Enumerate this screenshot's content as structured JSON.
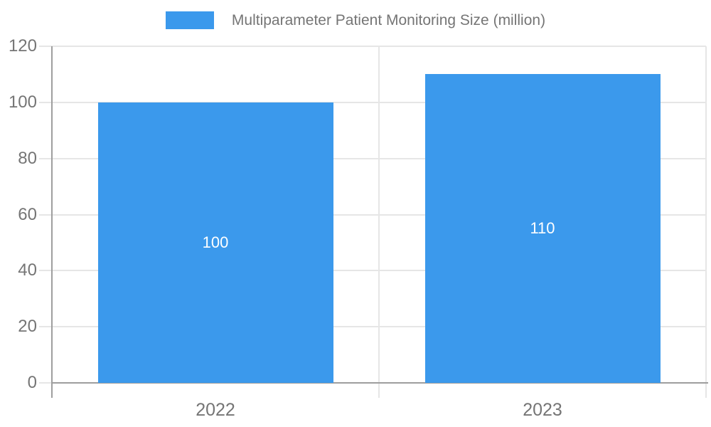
{
  "chart_data": {
    "type": "bar",
    "title": "Multiparameter Patient Monitoring Size (million)",
    "categories": [
      "2022",
      "2023"
    ],
    "values": [
      100,
      110
    ],
    "value_labels": [
      "100",
      "110"
    ],
    "xlabel": "",
    "ylabel": "",
    "ylim": [
      0,
      120
    ],
    "yticks": [
      0,
      20,
      40,
      60,
      80,
      100,
      120
    ],
    "grid": true,
    "legend_position": "top",
    "colors": {
      "bar": "#3b99ec",
      "gridline": "#e6e6e6",
      "axis": "#9e9e9e",
      "tick_text": "#757575",
      "value_label_text": "#ffffff",
      "background": "#ffffff"
    }
  }
}
